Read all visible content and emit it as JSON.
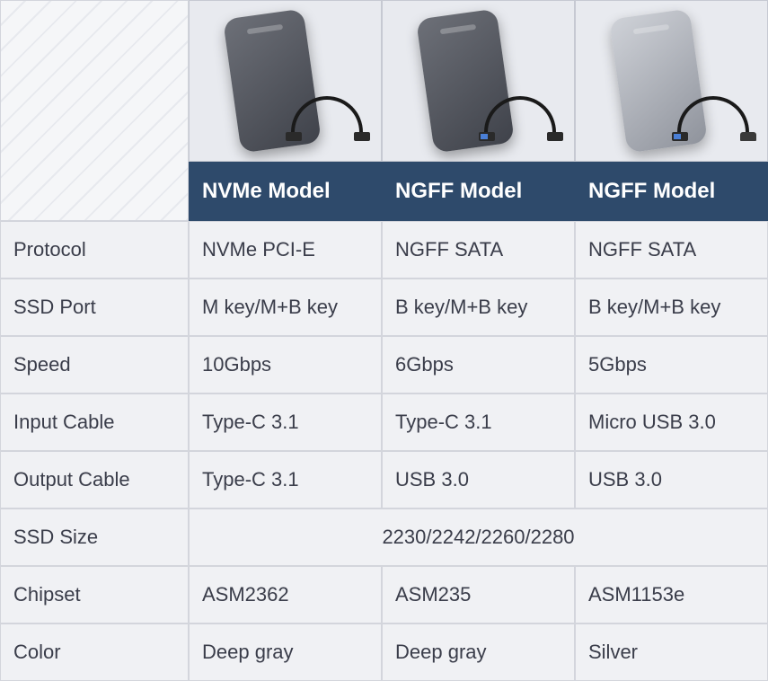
{
  "headers": {
    "model1": "NVMe Model",
    "model2": "NGFF Model",
    "model3": "NGFF Model"
  },
  "rows": {
    "protocol": {
      "label": "Protocol",
      "c1": "NVMe PCI-E",
      "c2": "NGFF SATA",
      "c3": "NGFF SATA"
    },
    "ssdport": {
      "label": "SSD Port",
      "c1": "M key/M+B key",
      "c2": "B key/M+B key",
      "c3": "B key/M+B key"
    },
    "speed": {
      "label": "Speed",
      "c1": "10Gbps",
      "c2": "6Gbps",
      "c3": "5Gbps"
    },
    "inputcable": {
      "label": "Input Cable",
      "c1": "Type-C 3.1",
      "c2": "Type-C 3.1",
      "c3": "Micro USB 3.0"
    },
    "outputcable": {
      "label": "Output Cable",
      "c1": "Type-C 3.1",
      "c2": "USB 3.0",
      "c3": "USB 3.0"
    },
    "ssdsize": {
      "label": "SSD Size",
      "span": "2230/2242/2260/2280"
    },
    "chipset": {
      "label": "Chipset",
      "c1": "ASM2362",
      "c2": "ASM235",
      "c3": "ASM1153e"
    },
    "color": {
      "label": "Color",
      "c1": "Deep gray",
      "c2": "Deep gray",
      "c3": "Silver"
    }
  },
  "styling": {
    "table_type": "comparison-table",
    "grid_columns": [
      210,
      215,
      215,
      215
    ],
    "header_bg": "#2e4a6b",
    "header_text_color": "#ffffff",
    "cell_bg": "#f0f1f4",
    "border_color": "#d3d5dc",
    "text_color": "#3a3d4a",
    "font_size_body": 22,
    "font_size_header": 24,
    "product_colors": {
      "c1": "gray",
      "c2": "gray",
      "c3": "silver"
    },
    "cable_types": {
      "c1": {
        "left": "typec",
        "right": "typec"
      },
      "c2": {
        "left": "usba",
        "right": "typec"
      },
      "c3": {
        "left": "usba",
        "right": "micro"
      }
    }
  }
}
